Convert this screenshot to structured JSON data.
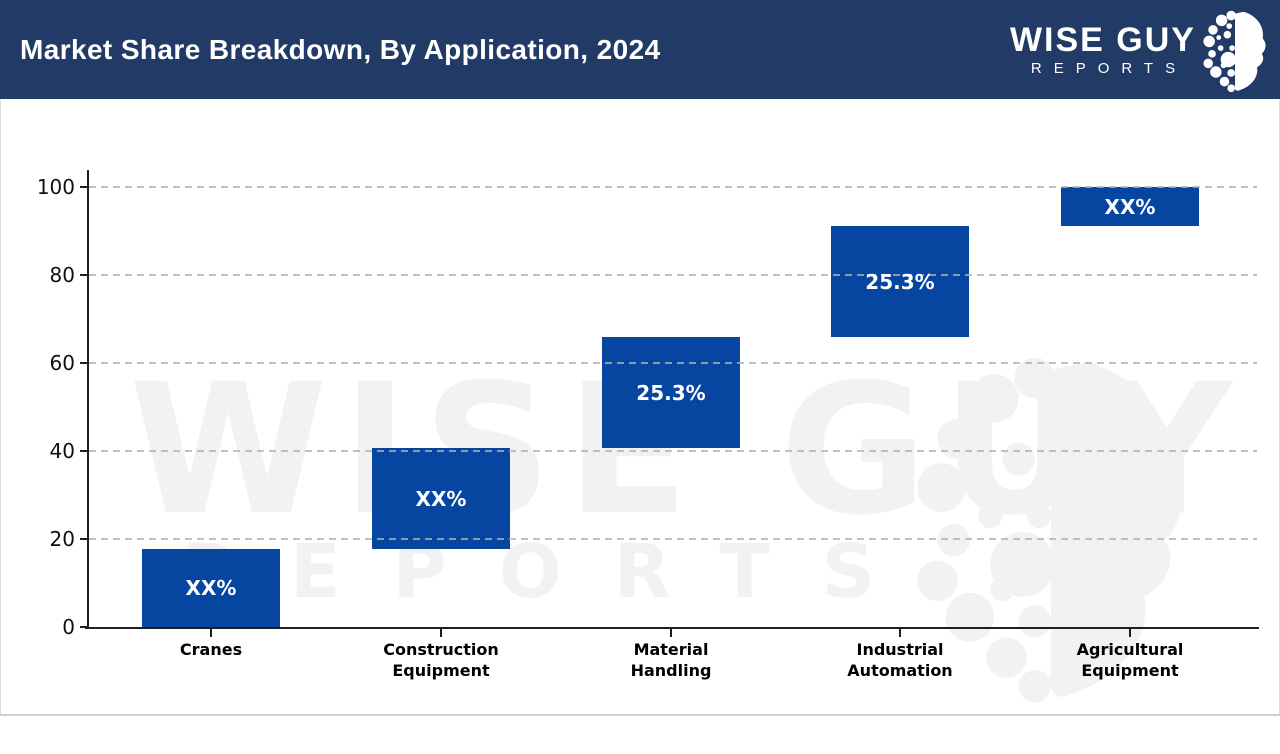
{
  "header": {
    "title": "Market Share Breakdown, By Application, 2024",
    "bg_color": "#213a66",
    "logo_line1": "WISE GUY",
    "logo_line2": "REPORTS"
  },
  "watermark": {
    "line1": "WISE GUY",
    "line2": "REPORTS"
  },
  "chart_data": {
    "type": "bar",
    "subtype": "floating-waterfall",
    "title": "Market Share Breakdown, By Application, 2024",
    "categories": [
      "Cranes",
      "Construction Equipment",
      "Material Handling",
      "Industrial Automation",
      "Agricultural Equipment"
    ],
    "segments": [
      {
        "category": "Cranes",
        "start": 0,
        "end": 17.7,
        "label": "XX%"
      },
      {
        "category": "Construction Equipment",
        "start": 17.7,
        "end": 40.6,
        "label": "XX%"
      },
      {
        "category": "Material Handling",
        "start": 40.6,
        "end": 65.9,
        "label": "25.3%"
      },
      {
        "category": "Industrial Automation",
        "start": 65.9,
        "end": 91.2,
        "label": "25.3%"
      },
      {
        "category": "Agricultural Equipment",
        "start": 91.2,
        "end": 100,
        "label": "XX%"
      }
    ],
    "ylim": [
      0,
      100
    ],
    "yticks": [
      0,
      20,
      40,
      60,
      80,
      100
    ],
    "grid": "horizontal-dashed",
    "legend": "none",
    "bar_color": "#0746a0",
    "bar_label_color": "#ffffff",
    "grid_color": "#b2b2b2",
    "axis_color": "#1f1f1f"
  }
}
